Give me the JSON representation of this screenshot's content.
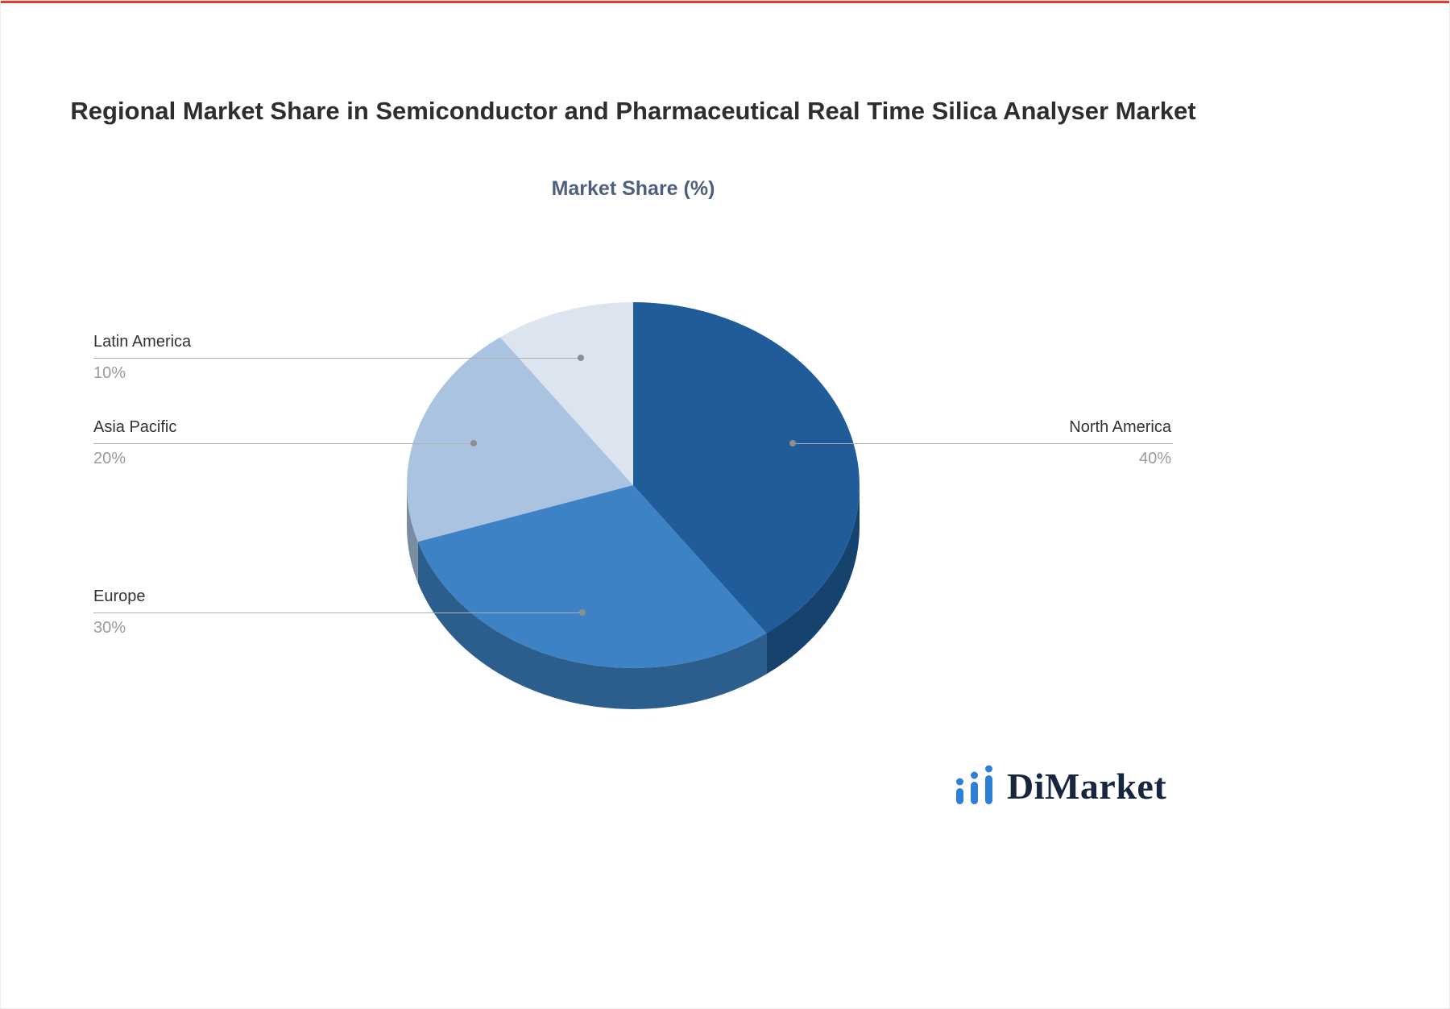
{
  "page": {
    "background": "#ffffff",
    "top_accent_color": "#e23b2e"
  },
  "chart_data": {
    "type": "pie",
    "title": "Regional Market Share in Semiconductor and Pharmaceutical Real Time Silica Analyser Market",
    "subtitle": "Market Share (%)",
    "categories": [
      "North America",
      "Europe",
      "Asia Pacific",
      "Latin America"
    ],
    "values": [
      40,
      30,
      20,
      10
    ],
    "unit": "%",
    "colors": [
      "#1f5c99",
      "#3d82c4",
      "#a9c3e0",
      "#dce4ef"
    ],
    "start_angle_deg": 0,
    "direction": "clockwise",
    "effect_3d": true,
    "legend": "none",
    "labels": [
      {
        "name": "North America",
        "value_label": "40%"
      },
      {
        "name": "Europe",
        "value_label": "30%"
      },
      {
        "name": "Asia Pacific",
        "value_label": "20%"
      },
      {
        "name": "Latin America",
        "value_label": "10%"
      }
    ]
  },
  "branding": {
    "logo_text": "DiMarket",
    "logo_icon": "bar-chart-icon",
    "logo_text_color": "#16263f",
    "logo_icon_color": "#2e7fd8"
  }
}
